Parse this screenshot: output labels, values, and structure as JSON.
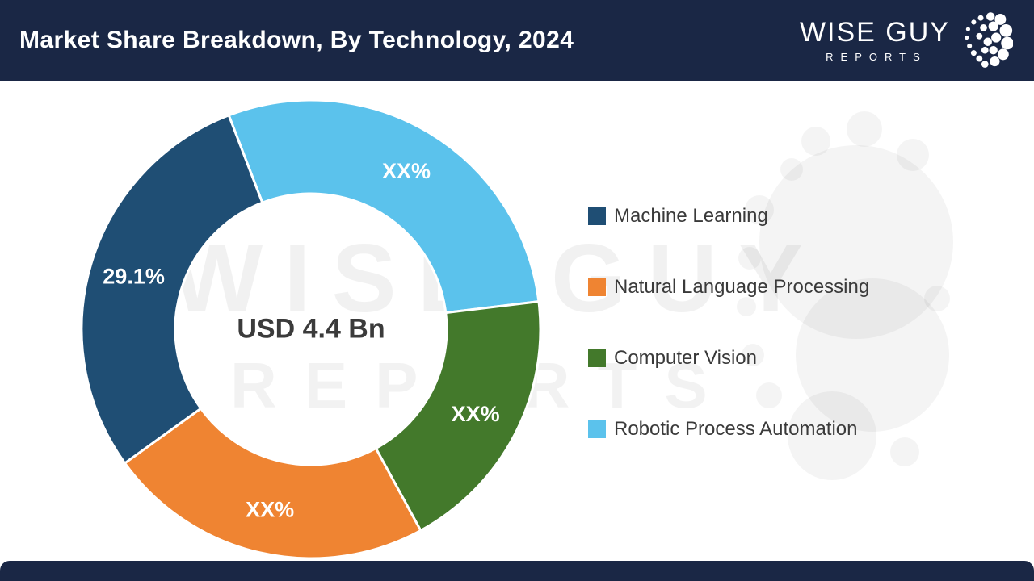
{
  "header": {
    "title": "Market Share Breakdown, By Technology, 2024"
  },
  "logo": {
    "name_top": "WISE GUY",
    "name_bottom": "REPORTS"
  },
  "watermark": {
    "line1": "WISE GUY",
    "line2": "REPORTS"
  },
  "chart_data": {
    "type": "pie",
    "subtype": "donut",
    "title": "Market Share Breakdown, By Technology, 2024",
    "center_label": "USD 4.4 Bn",
    "start_angle_deg": 111,
    "direction": "clockwise",
    "inner_radius_ratio": 0.59,
    "legend_position": "right",
    "segments": [
      {
        "name": "Robotic Process Automation",
        "display_label": "XX%",
        "value_pct_est": 28.9,
        "color": "#5bc2ec"
      },
      {
        "name": "Computer Vision",
        "display_label": "XX%",
        "value_pct_est": 19.0,
        "color": "#43792b"
      },
      {
        "name": "Natural Language Processing",
        "display_label": "XX%",
        "value_pct_est": 23.0,
        "color": "#ef8432"
      },
      {
        "name": "Machine Learning",
        "display_label": "29.1%",
        "value_pct_est": 29.1,
        "color": "#1f4e74"
      }
    ]
  },
  "legend": {
    "items": [
      {
        "label": "Machine Learning",
        "color": "#1f4e74"
      },
      {
        "label": "Natural Language Processing",
        "color": "#ef8432"
      },
      {
        "label": "Computer Vision",
        "color": "#43792b"
      },
      {
        "label": "Robotic Process Automation",
        "color": "#5bc2ec"
      }
    ]
  }
}
